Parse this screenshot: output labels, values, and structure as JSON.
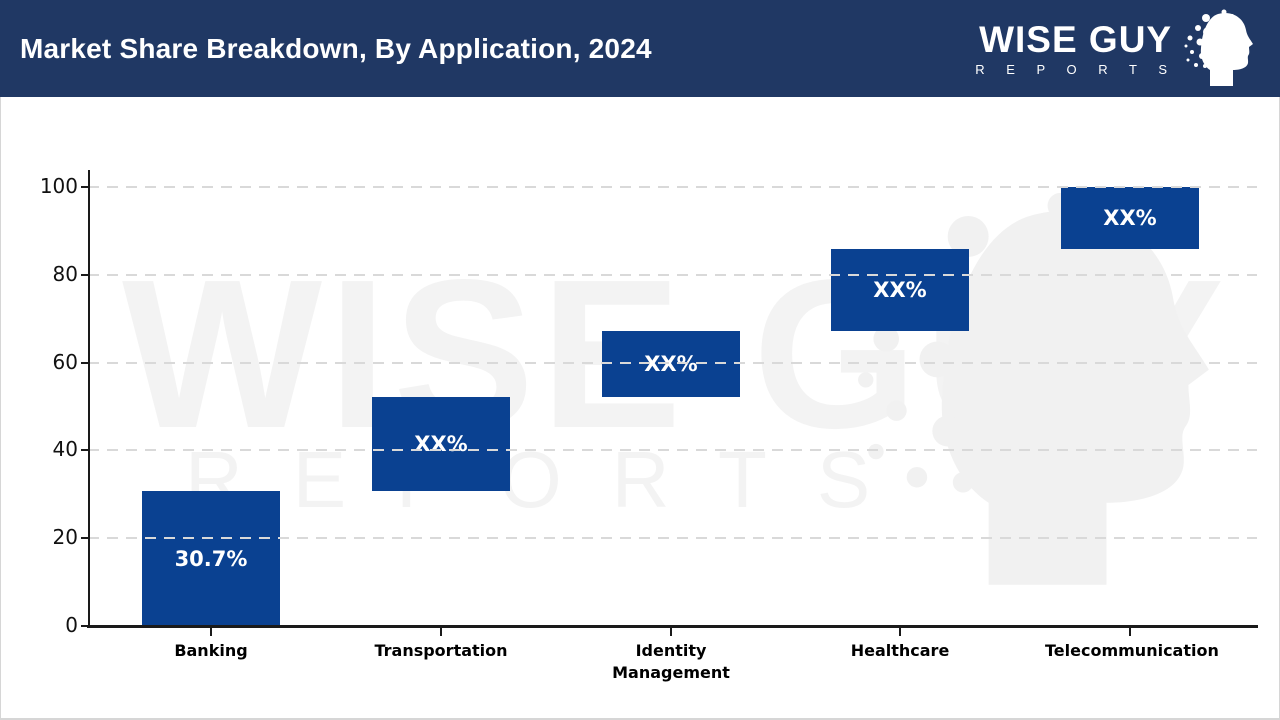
{
  "header": {
    "title": "Market Share Breakdown, By Application, 2024",
    "bg_color": "#203864",
    "logo": {
      "line1": "WISE GUY",
      "line2": "R E P O R T S"
    }
  },
  "watermark": {
    "line1": "WISE GUY",
    "line2": "REPORTS"
  },
  "chart_data": {
    "type": "bar",
    "subtype": "waterfall",
    "title": "Market Share Breakdown, By Application, 2024",
    "categories": [
      "Banking",
      "Transportation",
      "Identity Management",
      "Healthcare",
      "Telecommunication"
    ],
    "segments": [
      {
        "category": "Banking",
        "start": 0,
        "end": 30.7,
        "label": "30.7%"
      },
      {
        "category": "Transportation",
        "start": 30.7,
        "end": 52.2,
        "label": "XX%"
      },
      {
        "category": "Identity Management",
        "start": 52.2,
        "end": 67.3,
        "label": "XX%"
      },
      {
        "category": "Healthcare",
        "start": 67.3,
        "end": 85.8,
        "label": "XX%"
      },
      {
        "category": "Telecommunication",
        "start": 85.8,
        "end": 100,
        "label": "XX%"
      }
    ],
    "ylim": [
      0,
      100
    ],
    "yticks": [
      0,
      20,
      40,
      60,
      80,
      100
    ],
    "xlabel": "",
    "ylabel": "",
    "grid": "horizontal-dashed",
    "legend": "none",
    "bar_color": "#0a4191",
    "bar_label_color": "#ffffff"
  }
}
